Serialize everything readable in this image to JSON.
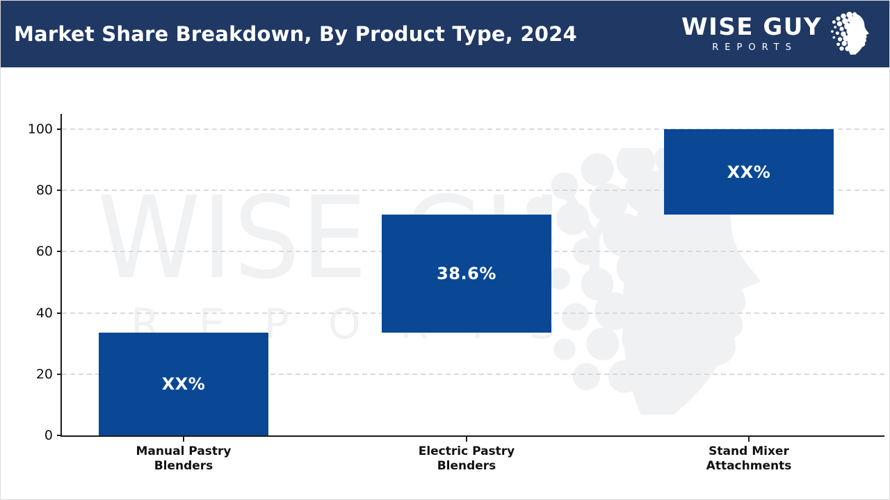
{
  "header": {
    "title": "Market Share Breakdown, By Product Type, 2024",
    "logo": {
      "wordmark": "WISE GUY",
      "sub": "REPORTS"
    }
  },
  "watermark": {
    "wordmark": "WISE GUY",
    "sub": "REPORTS"
  },
  "chart_data": {
    "type": "bar",
    "subtype": "waterfall (floating stacked segments, cumulative to 100%)",
    "title": "Market Share Breakdown, By Product Type, 2024",
    "categories": [
      [
        "Manual Pastry",
        "Blenders"
      ],
      [
        "Electric Pastry",
        "Blenders"
      ],
      [
        "Stand Mixer",
        "Attachments"
      ]
    ],
    "segments": [
      {
        "start": 0,
        "end": 33.5,
        "label": "XX%"
      },
      {
        "start": 33.5,
        "end": 72.1,
        "label": "38.6%"
      },
      {
        "start": 72.1,
        "end": 100,
        "label": "XX%"
      }
    ],
    "values": [
      33.5,
      38.6,
      27.9
    ],
    "yticks": [
      0,
      20,
      40,
      60,
      80,
      100
    ],
    "ylim": [
      0,
      105
    ],
    "xlabel": "",
    "ylabel": "",
    "grid": "horizontal dashed",
    "legend": "none",
    "colors": {
      "bar": "#0a4896",
      "header_bg": "#1f3864",
      "grid": "#d9d9d9",
      "axis": "#1a1a1a",
      "bar_label": "#ffffff",
      "watermark": "#f0f1f3",
      "category_label": "#111111"
    }
  }
}
